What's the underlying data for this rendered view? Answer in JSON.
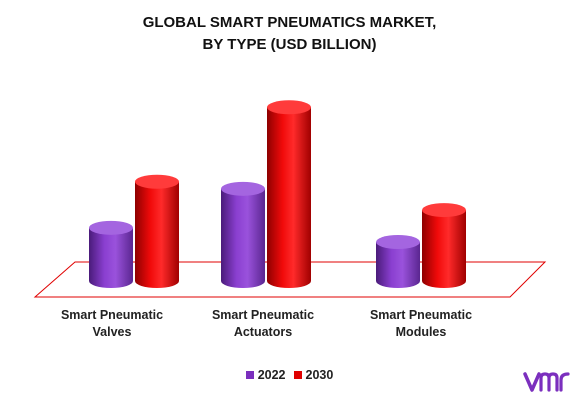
{
  "chart_data": {
    "type": "bar",
    "title_lines": [
      "GLOBAL SMART PNEUMATICS MARKET,",
      "BY TYPE (USD BILLION)"
    ],
    "categories": [
      [
        "Smart Pneumatic",
        "Valves"
      ],
      [
        "Smart Pneumatic",
        "Actuators"
      ],
      [
        "Smart Pneumatic",
        "Modules"
      ]
    ],
    "series": [
      {
        "name": "2022",
        "color": "#7b2fbe",
        "values": [
          1.5,
          2.6,
          1.1
        ]
      },
      {
        "name": "2030",
        "color": "#e00000",
        "values": [
          2.8,
          4.9,
          2.0
        ]
      }
    ],
    "ylim": [
      0,
      5.5
    ],
    "axes_visible": false,
    "legend_position": "bottom"
  },
  "colors": {
    "floor_outline": "#e00000",
    "logo": "#7b2fbe"
  },
  "logo_icon": "vmr-logo"
}
